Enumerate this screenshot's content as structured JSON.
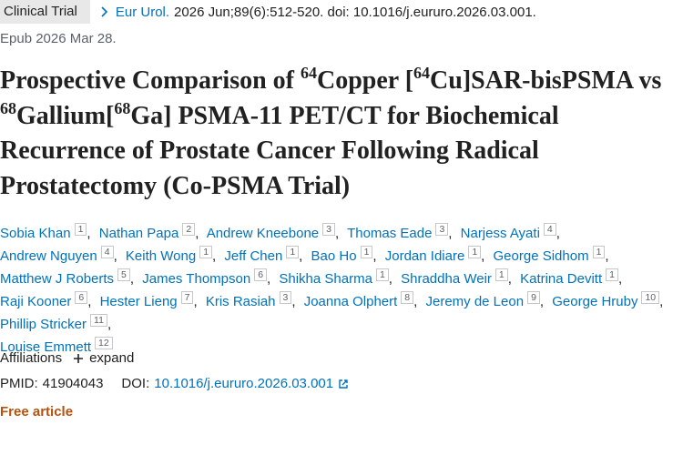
{
  "header": {
    "tag": "Clinical Trial",
    "journal": "Eur Urol.",
    "citation": "2026 Jun;89(6):512-520. doi: 10.1016/j.eururo.2026.03.001.",
    "epub": "Epub 2026 Mar 28."
  },
  "title": {
    "parts": [
      {
        "text": "Prospective Comparison of ",
        "sup": false
      },
      {
        "text": "64",
        "sup": true
      },
      {
        "text": "Copper [",
        "sup": false
      },
      {
        "text": "64",
        "sup": true
      },
      {
        "text": "Cu]SAR-bisPSMA vs ",
        "sup": false
      },
      {
        "text": "68",
        "sup": true
      },
      {
        "text": "Gallium[",
        "sup": false
      },
      {
        "text": "68",
        "sup": true
      },
      {
        "text": "Ga] PSMA-11 PET/CT for Biochemical Recurrence of Prostate Cancer Following Radical Prostatectomy (Co-PSMA Trial)",
        "sup": false
      }
    ]
  },
  "authors": {
    "separator": ",",
    "list": [
      {
        "name": "Sobia Khan",
        "aff": 1
      },
      {
        "name": "Nathan Papa",
        "aff": 2
      },
      {
        "name": "Andrew Kneebone",
        "aff": 3
      },
      {
        "name": "Thomas Eade",
        "aff": 3
      },
      {
        "name": "Narjess Ayati",
        "aff": 4
      },
      {
        "name": "Andrew Nguyen",
        "aff": 4
      },
      {
        "name": "Keith Wong",
        "aff": 1
      },
      {
        "name": "Jeff Chen",
        "aff": 1
      },
      {
        "name": "Bao Ho",
        "aff": 1
      },
      {
        "name": "Jordan Idiare",
        "aff": 1
      },
      {
        "name": "George Sidhom",
        "aff": 1
      },
      {
        "name": "Matthew J Roberts",
        "aff": 5
      },
      {
        "name": "James Thompson",
        "aff": 6
      },
      {
        "name": "Shikha Sharma",
        "aff": 1
      },
      {
        "name": "Shraddha Weir",
        "aff": 1
      },
      {
        "name": "Katrina Devitt",
        "aff": 1
      },
      {
        "name": "Raji Kooner",
        "aff": 6
      },
      {
        "name": "Hester Lieng",
        "aff": 7
      },
      {
        "name": "Kris Rasiah",
        "aff": 3
      },
      {
        "name": "Joanna Olphert",
        "aff": 8
      },
      {
        "name": "Jeremy de Leon",
        "aff": 9
      },
      {
        "name": "George Hruby",
        "aff": 10
      },
      {
        "name": "Phillip Stricker",
        "aff": 11
      },
      {
        "name": "Louise Emmett",
        "aff": 12
      }
    ]
  },
  "affiliations": {
    "label": "Affiliations",
    "toggle": "expand"
  },
  "identifiers": {
    "pmid_label": "PMID:",
    "pmid": "41904043",
    "doi_label": "DOI:",
    "doi": "10.1016/j.eururo.2026.03.001"
  },
  "access": "Free article"
}
